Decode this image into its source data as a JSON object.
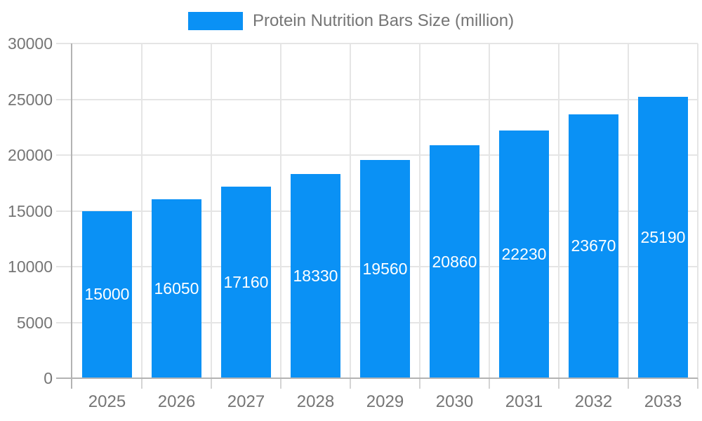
{
  "legend": {
    "label": "Protein Nutrition Bars Size (million)"
  },
  "chart_data": {
    "type": "bar",
    "title": "Protein Nutrition Bars Size (million)",
    "categories": [
      "2025",
      "2026",
      "2027",
      "2028",
      "2029",
      "2030",
      "2031",
      "2032",
      "2033"
    ],
    "values": [
      15000,
      16050,
      17160,
      18330,
      19560,
      20860,
      22230,
      23670,
      25190
    ],
    "xlabel": "",
    "ylabel": "",
    "ylim": [
      0,
      30000
    ],
    "yticks": [
      0,
      5000,
      10000,
      15000,
      20000,
      25000,
      30000
    ],
    "grid": true,
    "legend_position": "top",
    "bar_color": "#0a91f5",
    "bar_label_color": "#ffffff",
    "axis_color": "#b3b3b3",
    "grid_color": "#e5e5e5",
    "tick_mark_color": "#d4d4d4",
    "label_color": "#757575"
  }
}
